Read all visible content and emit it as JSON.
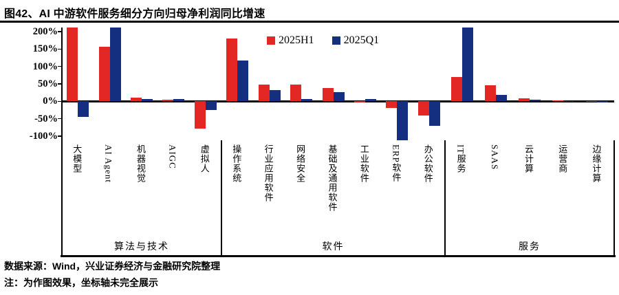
{
  "title": "图42、AI 中游软件服务细分方向归母净利润同比增速",
  "legend": {
    "items": [
      {
        "label": "2025H1",
        "color": "#E22725"
      },
      {
        "label": "2025Q1",
        "color": "#142E80"
      }
    ]
  },
  "footer": {
    "source": "数据来源：Wind，兴业证券经济与金融研究院整理",
    "note": "注：为作图效果，坐标轴未完全展示"
  },
  "chart_data": {
    "type": "bar",
    "title": "AI 中游软件服务细分方向归母净利润同比增速",
    "xlabel": "",
    "ylabel": "",
    "y_ticks_pct": [
      200,
      150,
      100,
      50,
      0,
      -50,
      -100
    ],
    "y_tick_labels": [
      "200%",
      "150%",
      "100%",
      "50%",
      "0%",
      "-50%",
      "-100%"
    ],
    "ylim_shown": [
      -100,
      200
    ],
    "ylim_display": [
      -112,
      212
    ],
    "grid": false,
    "legend_position": "top-center",
    "note": "大模型2025H1、AI Agent 2025Q1、IT服务2025Q1 超过+200%被截断；ERP软件2025Q1 低于-100%被截断（坐标轴未完全展示）",
    "categories": [
      "大模型",
      "AI Agent",
      "机器视觉",
      "AIGC",
      "虚拟人",
      "操作系统",
      "行业应用软件",
      "网络安全",
      "基础及通用软件",
      "工业软件",
      "ERP软件",
      "办公软件",
      "IT服务",
      "SAAS",
      "云计算",
      "运营商",
      "边缘计算"
    ],
    "groups": [
      {
        "label": "算法与技术",
        "span": [
          0,
          4
        ]
      },
      {
        "label": "软件",
        "span": [
          5,
          11
        ]
      },
      {
        "label": "服务",
        "span": [
          12,
          16
        ]
      }
    ],
    "series": [
      {
        "name": "2025H1",
        "color": "#E22725",
        "values": [
          212,
          156,
          11,
          5,
          -78,
          180,
          49,
          49,
          39,
          -3,
          -20,
          -40,
          70,
          46,
          8,
          3,
          0.5
        ]
      },
      {
        "name": "2025Q1",
        "color": "#142E80",
        "values": [
          -45,
          212,
          7,
          7,
          -25,
          118,
          33,
          6,
          27,
          6,
          -112,
          -70,
          212,
          19,
          5,
          1.5,
          -4
        ]
      }
    ]
  },
  "layout_colors": {
    "axis": "#000000",
    "background": "#ffffff"
  }
}
